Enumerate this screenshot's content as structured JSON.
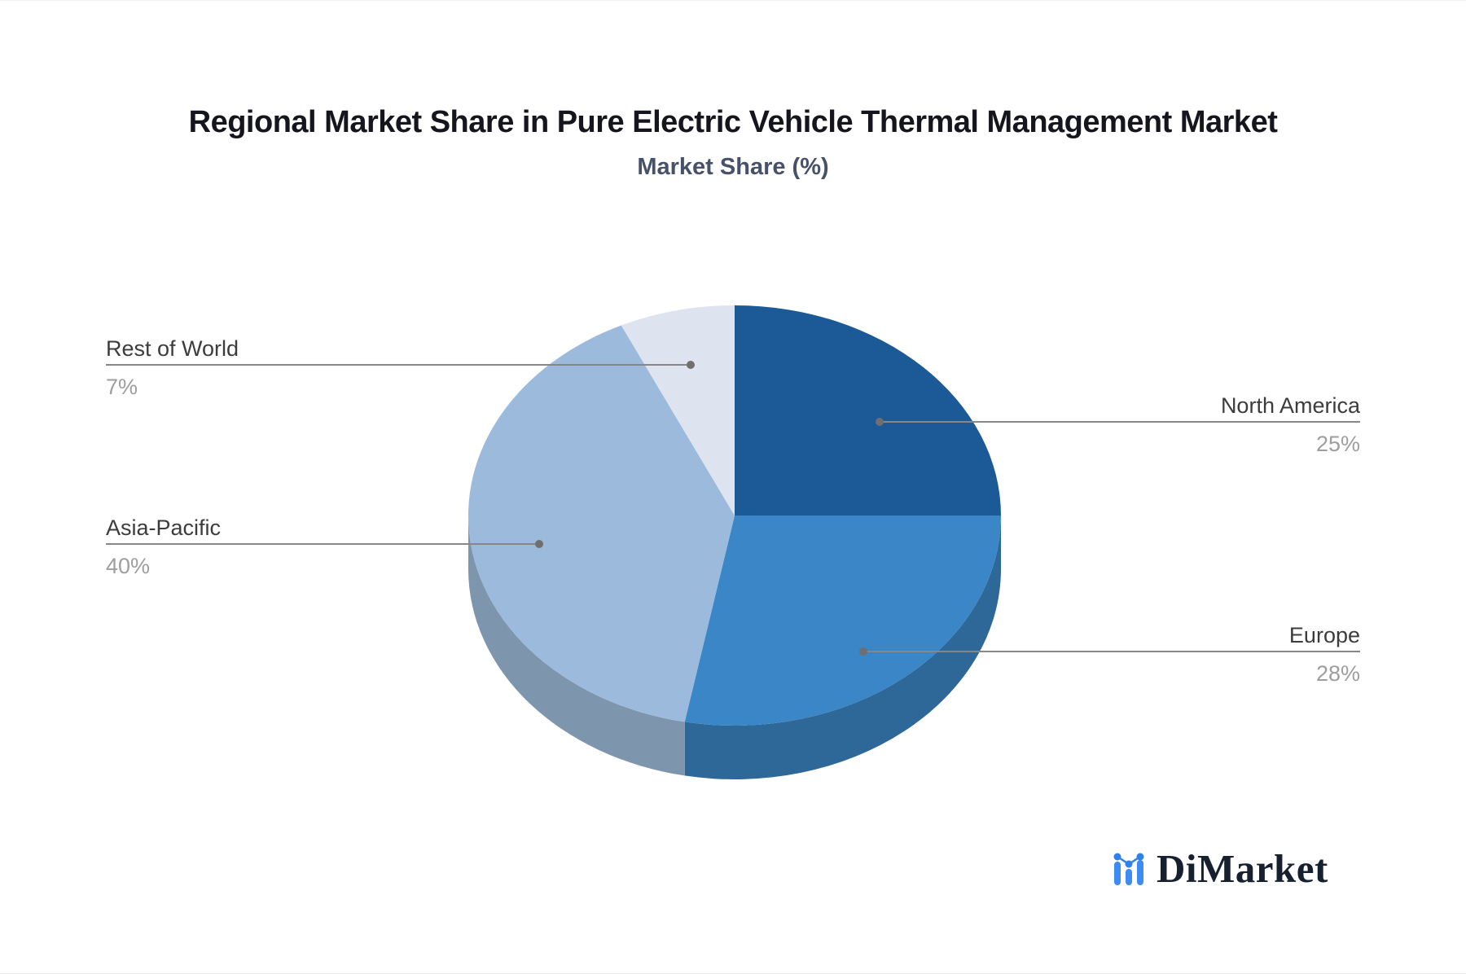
{
  "chart_data": {
    "type": "pie",
    "effect": "3d",
    "title": "Regional Market Share in Pure Electric Vehicle Thermal Management Market",
    "subtitle": "Market Share (%)",
    "unit": "%",
    "start_angle_deg": -90,
    "direction": "clockwise",
    "legend_position": "callout-lines",
    "categories": [
      "North America",
      "Europe",
      "Asia-Pacific",
      "Rest of World"
    ],
    "values": [
      25,
      28,
      40,
      7
    ],
    "slices": [
      {
        "label": "North America",
        "value": 25,
        "pct_label": "25%",
        "color": "#1b5a96",
        "rim_color": "#164a7c",
        "callout_side": "right"
      },
      {
        "label": "Europe",
        "value": 28,
        "pct_label": "28%",
        "color": "#3a86c7",
        "rim_color": "#2d6899",
        "callout_side": "right"
      },
      {
        "label": "Asia-Pacific",
        "value": 40,
        "pct_label": "40%",
        "color": "#9cbbdc",
        "rim_color": "#7e95ae",
        "callout_side": "left"
      },
      {
        "label": "Rest of World",
        "value": 7,
        "pct_label": "7%",
        "color": "#dde4ef",
        "rim_color": "#b6c2d4",
        "callout_side": "left"
      }
    ]
  },
  "styles": {
    "title_color": "#15151d",
    "subtitle_color": "#475169",
    "label_color": "#3c3c3c",
    "pct_color": "#9e9e9e",
    "leader_line_color": "#878787",
    "leader_dot_color": "#6f6f6f",
    "background": "#ffffff"
  },
  "logo": {
    "text": "DiMarket",
    "icon": "bar-line-chart-icon",
    "icon_bar_color": "#3d8cf4",
    "icon_dot_color": "#2f80ea",
    "text_color": "#16202f"
  }
}
